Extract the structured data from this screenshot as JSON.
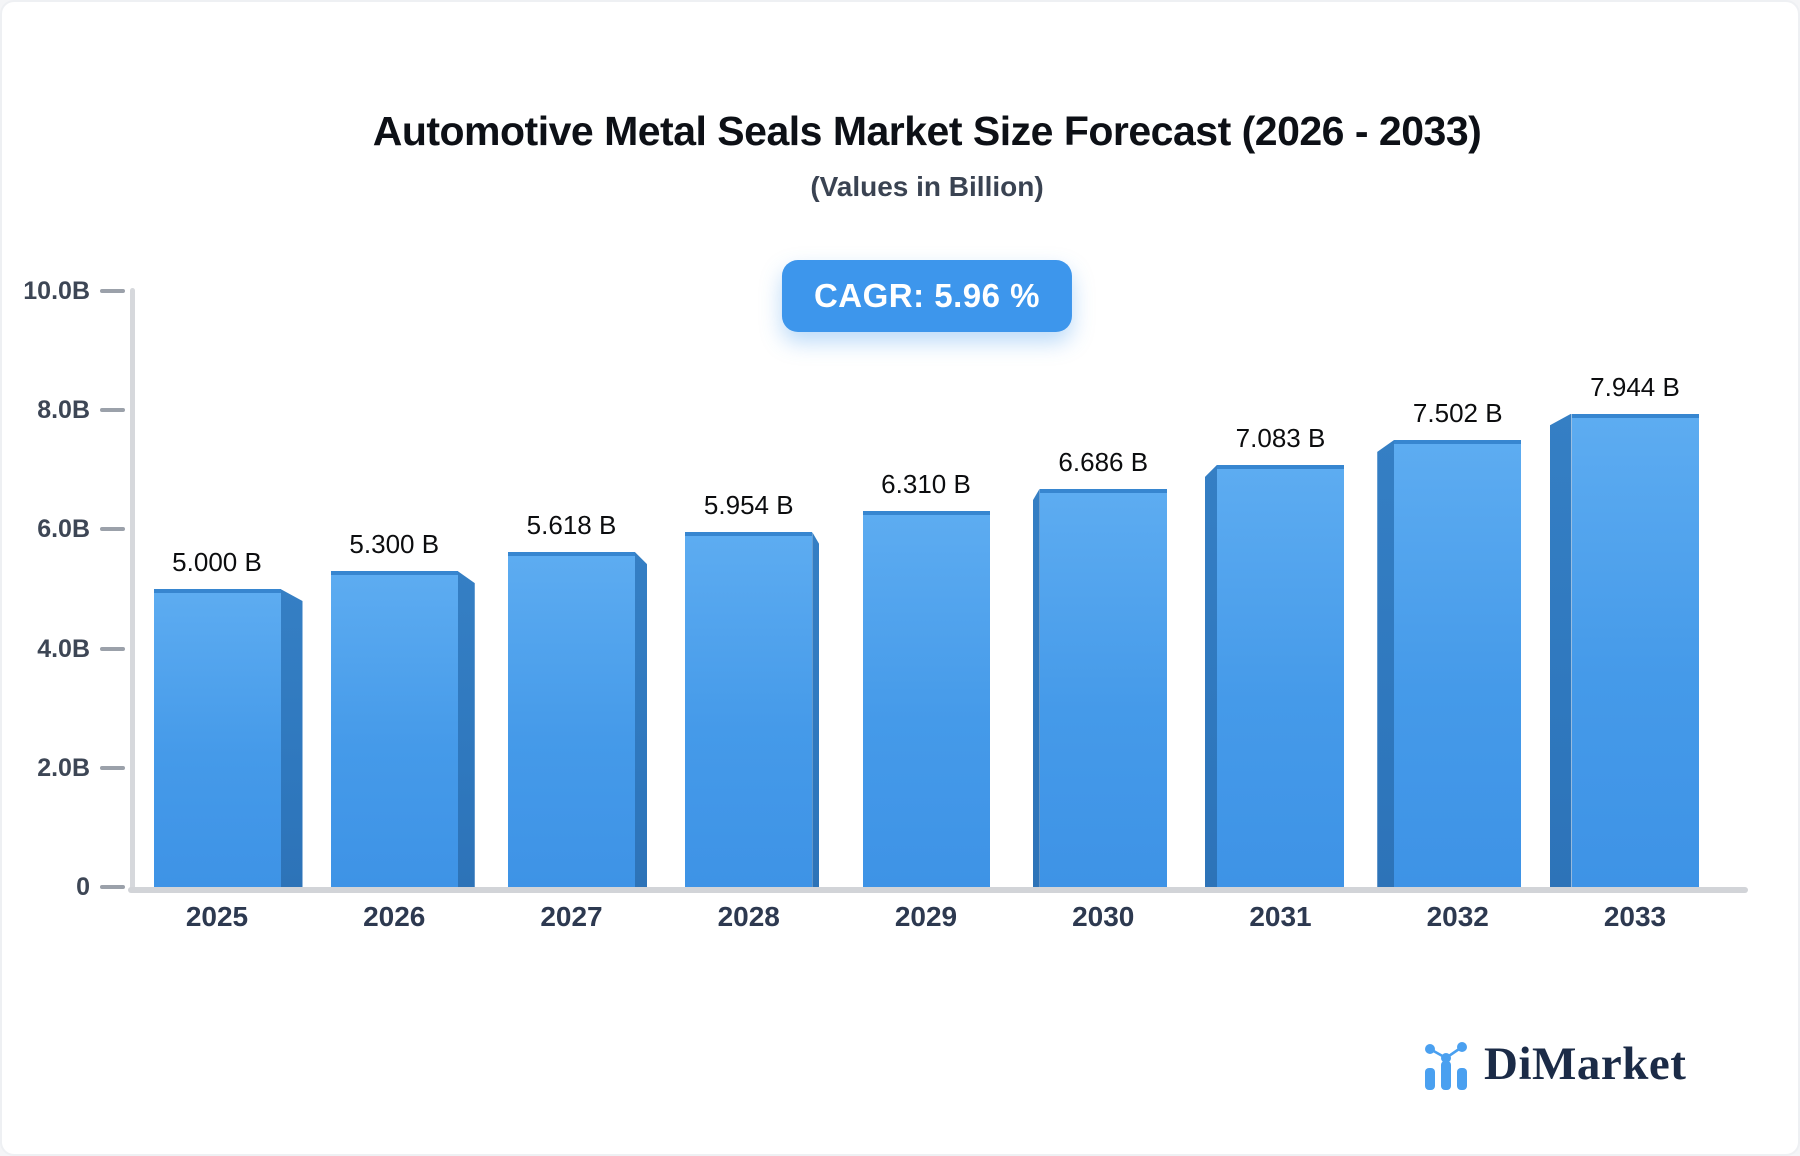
{
  "chart_data": {
    "type": "bar",
    "title": "Automotive Metal Seals Market Size Forecast (2026 - 2033)",
    "subtitle": "(Values in Billion)",
    "cagr_badge": "CAGR: 5.96 %",
    "categories": [
      "2025",
      "2026",
      "2027",
      "2028",
      "2029",
      "2030",
      "2031",
      "2032",
      "2033"
    ],
    "values": [
      5.0,
      5.3,
      5.618,
      5.954,
      6.31,
      6.686,
      7.083,
      7.502,
      7.944
    ],
    "value_labels": [
      "5.000 B",
      "5.300 B",
      "5.618 B",
      "5.954 B",
      "6.310 B",
      "6.686 B",
      "7.083 B",
      "7.502 B",
      "7.944 B"
    ],
    "y_ticks": [
      {
        "value": 0,
        "label": "0"
      },
      {
        "value": 2,
        "label": "2.0B"
      },
      {
        "value": 4,
        "label": "4.0B"
      },
      {
        "value": 6,
        "label": "6.0B"
      },
      {
        "value": 8,
        "label": "8.0B"
      },
      {
        "value": 10,
        "label": "10.0B"
      }
    ],
    "ylim": [
      0,
      10
    ],
    "xlabel": "",
    "ylabel": "",
    "grid": false,
    "legend_position": "none",
    "style_3d": true,
    "colors": {
      "bar_face": "#459AE9",
      "bar_face_light": "#5DACF1",
      "bar_side": "#2F78BE",
      "bar_top_edge": "#3786D0",
      "badge_bg": "#3D96EC",
      "badge_text": "#FFFFFF",
      "axis_line": "#D6D8DC",
      "tick": "#9BA1AA",
      "title_text": "#0D1016",
      "subtitle_text": "#3A4352",
      "value_text": "#0C0D0F",
      "x_label_text": "#2D3950",
      "y_label_text": "#3D4655",
      "logo_text": "#1B2B47",
      "logo_icon": "#4AA0F0"
    }
  },
  "brand": {
    "name": "DiMarket"
  }
}
